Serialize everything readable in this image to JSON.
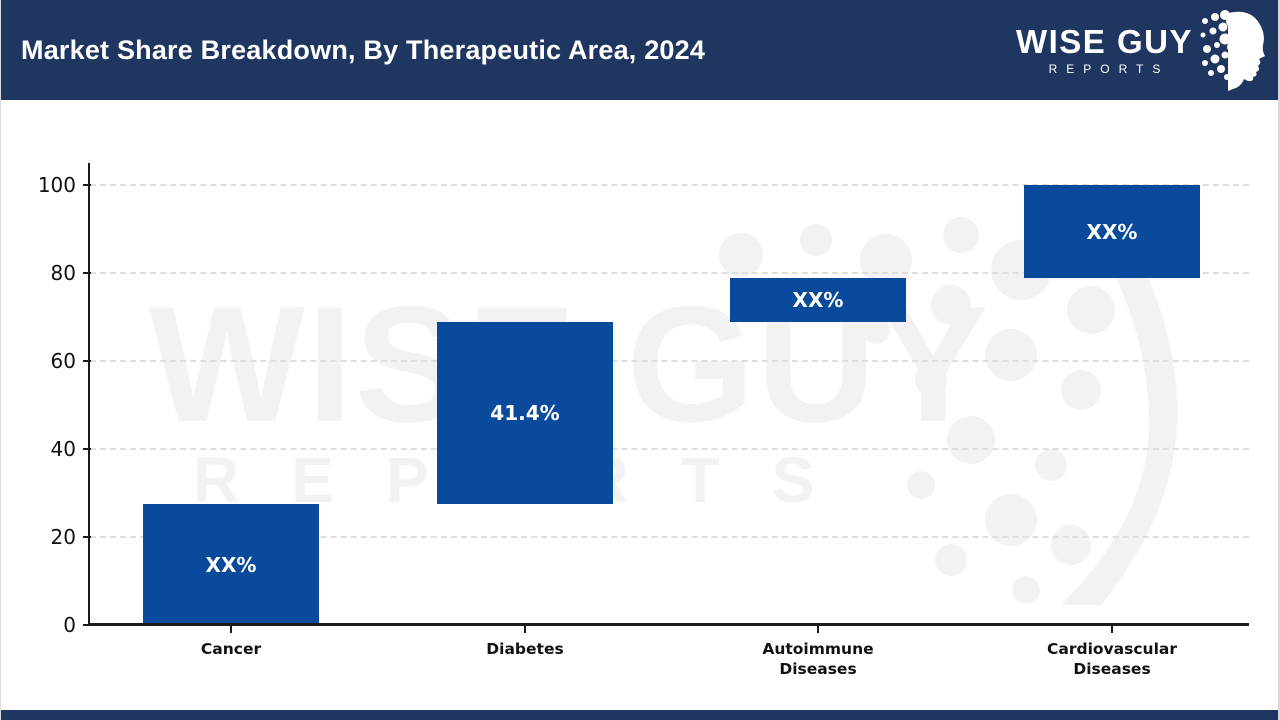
{
  "header": {
    "title": "Market Share Breakdown, By Therapeutic Area, 2024",
    "logo": {
      "line1": "WISE GUY",
      "line2": "REPORTS"
    }
  },
  "watermark": {
    "line1": "WISE GUY",
    "line2": "REPORTS"
  },
  "chart_data": {
    "type": "bar",
    "subtype": "waterfall",
    "title": "Market Share Breakdown, By Therapeutic Area, 2024",
    "categories": [
      "Cancer",
      "Diabetes",
      "Autoimmune\nDiseases",
      "Cardiovascular\nDiseases"
    ],
    "bars": [
      {
        "category": "Cancer",
        "start": 0,
        "end": 27.5,
        "label": "XX%"
      },
      {
        "category": "Diabetes",
        "start": 27.5,
        "end": 68.9,
        "label": "41.4%"
      },
      {
        "category": "Autoimmune Diseases",
        "start": 68.9,
        "end": 78.8,
        "label": "XX%"
      },
      {
        "category": "Cardiovascular Diseases",
        "start": 78.8,
        "end": 100,
        "label": "XX%"
      }
    ],
    "ylim": [
      0,
      100
    ],
    "yticks": [
      0,
      20,
      40,
      60,
      80,
      100
    ],
    "xlabel": "",
    "ylabel": "",
    "grid": "horizontal-dashed",
    "legend": "none"
  },
  "colors": {
    "header_bg": "#1f3661",
    "footer_bg": "#1f3661",
    "bar": "#0a4a9c",
    "bar_label": "#ffffff",
    "grid": "#dedede",
    "axis": "#1a1a1a",
    "watermark": "#f2f2f4"
  }
}
